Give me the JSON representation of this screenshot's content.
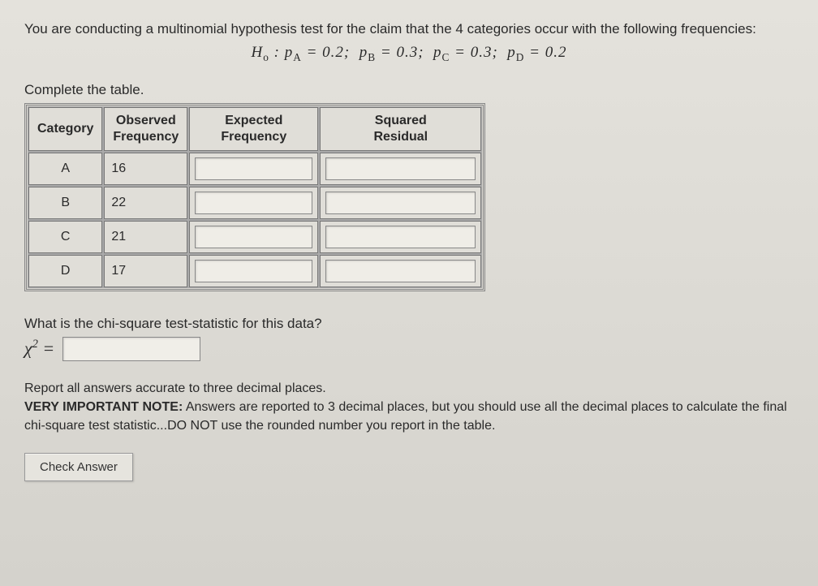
{
  "intro": "You are conducting a multinomial hypothesis test for the claim that the 4 categories occur with the following frequencies:",
  "hypothesis": {
    "label": "Hₒ :",
    "parts": [
      {
        "sym": "p",
        "sub": "A",
        "val": "0.2"
      },
      {
        "sym": "p",
        "sub": "B",
        "val": "0.3"
      },
      {
        "sym": "p",
        "sub": "C",
        "val": "0.3"
      },
      {
        "sym": "p",
        "sub": "D",
        "val": "0.2"
      }
    ]
  },
  "complete_text": "Complete the table.",
  "table": {
    "headers": {
      "category": "Category",
      "observed": "Observed\nFrequency",
      "expected": "Expected\nFrequency",
      "residual": "Squared\nResidual"
    },
    "rows": [
      {
        "category": "A",
        "observed": "16",
        "expected": "",
        "residual": ""
      },
      {
        "category": "B",
        "observed": "22",
        "expected": "",
        "residual": ""
      },
      {
        "category": "C",
        "observed": "21",
        "expected": "",
        "residual": ""
      },
      {
        "category": "D",
        "observed": "17",
        "expected": "",
        "residual": ""
      }
    ]
  },
  "question": "What is the chi-square test-statistic for this data?",
  "chi_label_pre": "χ",
  "chi_label_sup": "2",
  "chi_label_eq": " = ",
  "chi_value": "",
  "note_line1": "Report all answers accurate to three decimal places.",
  "note_bold": "VERY IMPORTANT NOTE:",
  "note_rest": " Answers are reported to 3 decimal places, but you should use all the decimal places to calculate the final chi-square test statistic...DO NOT use the rounded number you report in the table.",
  "check_btn": "Check Answer",
  "colors": {
    "page_bg": "#d8d6d0",
    "border": "#888888",
    "text": "#2a2a2a",
    "input_bg": "#efede7"
  }
}
